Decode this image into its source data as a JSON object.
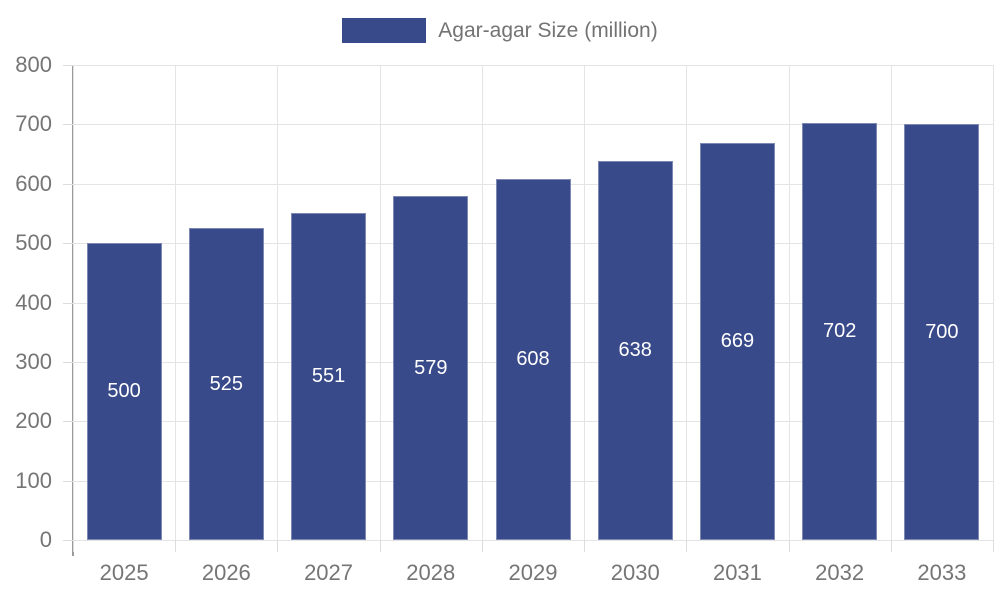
{
  "legend": {
    "items": [
      {
        "label": "Agar-agar Size (million)",
        "color": "#394A8A"
      }
    ]
  },
  "chart_data": {
    "type": "bar",
    "title": "",
    "categories": [
      "2025",
      "2026",
      "2027",
      "2028",
      "2029",
      "2030",
      "2031",
      "2032",
      "2033"
    ],
    "series": [
      {
        "name": "Agar-agar Size (million)",
        "color": "#394A8A",
        "values": [
          500,
          525,
          551,
          579,
          608,
          638,
          669,
          702,
          700
        ]
      }
    ],
    "xlabel": "",
    "ylabel": "",
    "ylim": [
      0,
      800
    ],
    "yticks": [
      0,
      100,
      200,
      300,
      400,
      500,
      600,
      700,
      800
    ],
    "grid": true,
    "legend_position": "top",
    "data_labels": {
      "show": true,
      "position": "center",
      "color": "#ffffff"
    }
  },
  "colors": {
    "bar": "#394A8A",
    "grid_line": "#e4e4e4",
    "axis_line": "#9a9a9a",
    "tick": "#dcdcdc",
    "axis_label": "#757575",
    "legend_text": "#737373",
    "bar_label": "#ffffff",
    "background": "#ffffff"
  }
}
